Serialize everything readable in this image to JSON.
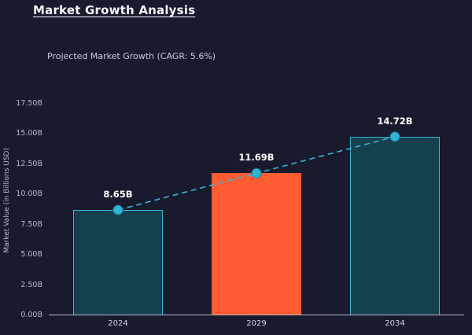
{
  "header": {
    "title": "Market Growth Analysis",
    "subtitle": "Projected Market Growth (CAGR: 5.6%)"
  },
  "chart_data": {
    "type": "bar",
    "title": "Market Growth Analysis",
    "subtitle": "Projected Market Growth (CAGR: 5.6%)",
    "categories": [
      "2024",
      "2029",
      "2034"
    ],
    "values": [
      8.65,
      11.69,
      14.72
    ],
    "value_labels": [
      "8.65B",
      "11.69B",
      "14.72B"
    ],
    "xlabel": "",
    "ylabel": "Market Value (in Billions USD)",
    "ylim": [
      0,
      17.5
    ],
    "yticks": [
      0,
      2.5,
      5,
      7.5,
      10,
      12.5,
      15,
      17.5
    ],
    "ytick_labels": [
      "0.00B",
      "2.50B",
      "5.00B",
      "7.50B",
      "10.00B",
      "12.50B",
      "15.00B",
      "17.50B"
    ],
    "grid": false,
    "legend": "none",
    "overlay": "dashed trend line with circular markers connecting bar tops",
    "bar_fill_colors": [
      "#15404e",
      "#ff5c33",
      "#15404e"
    ],
    "bar_border_colors": [
      "#3ab6d4",
      "#ff5c33",
      "#3ab6d4"
    ],
    "colors": {
      "background": "#1a1a2e",
      "trend_line": "#3ab6d4",
      "marker_fill": "#2fb3d6",
      "marker_edge": "#1a7d96",
      "title_text": "#f5f5fa",
      "subtitle_text": "#c9c9d6",
      "axis_text": "#b9b9c9",
      "value_label_text": "#ffffff"
    }
  }
}
